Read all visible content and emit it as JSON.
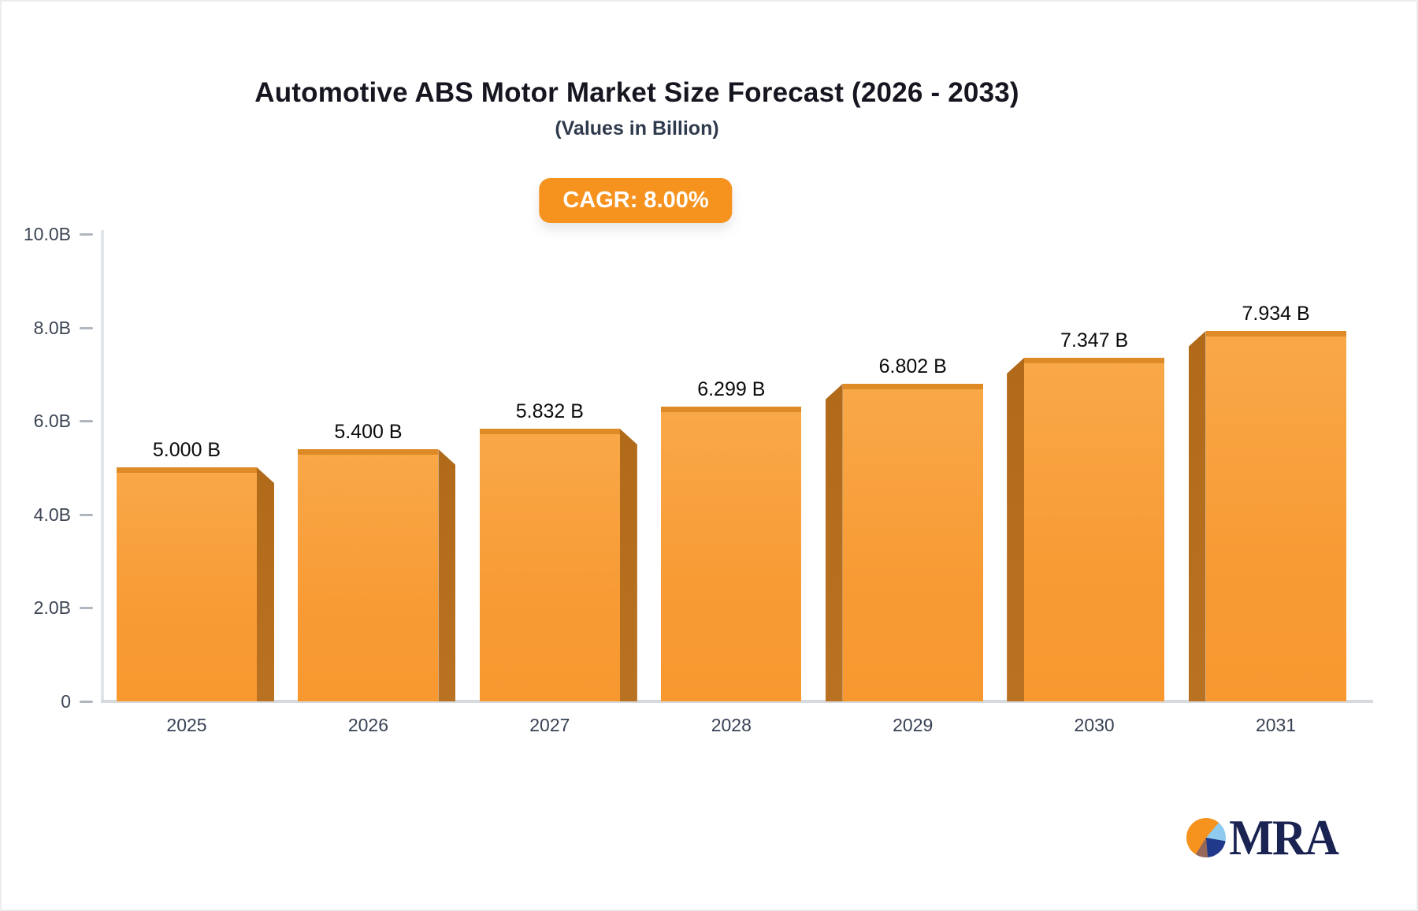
{
  "header": {
    "title": "Automotive ABS Motor Market Size Forecast (2026 - 2033)",
    "subtitle": "(Values in Billion)"
  },
  "badge": {
    "label": "CAGR: 8.00%"
  },
  "logo": {
    "text": "MRA"
  },
  "chart_data": {
    "type": "bar",
    "title": "Automotive ABS Motor Market Size Forecast (2026 - 2033)",
    "subtitle": "(Values in Billion)",
    "annotation": "CAGR: 8.00%",
    "categories": [
      "2025",
      "2026",
      "2027",
      "2028",
      "2029",
      "2030",
      "2031"
    ],
    "values": [
      5.0,
      5.4,
      5.832,
      6.299,
      6.802,
      7.347,
      7.934
    ],
    "value_labels": [
      "5.000 B",
      "5.400 B",
      "5.832 B",
      "6.299 B",
      "6.802 B",
      "7.347 B",
      "7.934 B"
    ],
    "xlabel": "",
    "ylabel": "",
    "ylim": [
      0,
      10
    ],
    "yticks": [
      0,
      2,
      4,
      6,
      8,
      10
    ],
    "ytick_labels": [
      "0",
      "2.0B",
      "4.0B",
      "6.0B",
      "8.0B",
      "10.0B"
    ],
    "grid": false,
    "legend": "none",
    "unit": "Billion",
    "colors": {
      "bar_face": "#f89b35",
      "bar_face_light": "#f9a848",
      "bar_cap": "#de8a27",
      "bar_side": "#b06a19",
      "badge_bg": "#f6921e",
      "badge_text": "#ffffff",
      "axis": "#d6dade",
      "axis_text": "#3c4554",
      "value_text": "#0b0b0c",
      "logo_navy": "#1a2352",
      "logo_orange": "#f6921e",
      "logo_lightblue": "#8fcbee",
      "logo_blue": "#20398b",
      "logo_brown": "#96685a"
    }
  }
}
